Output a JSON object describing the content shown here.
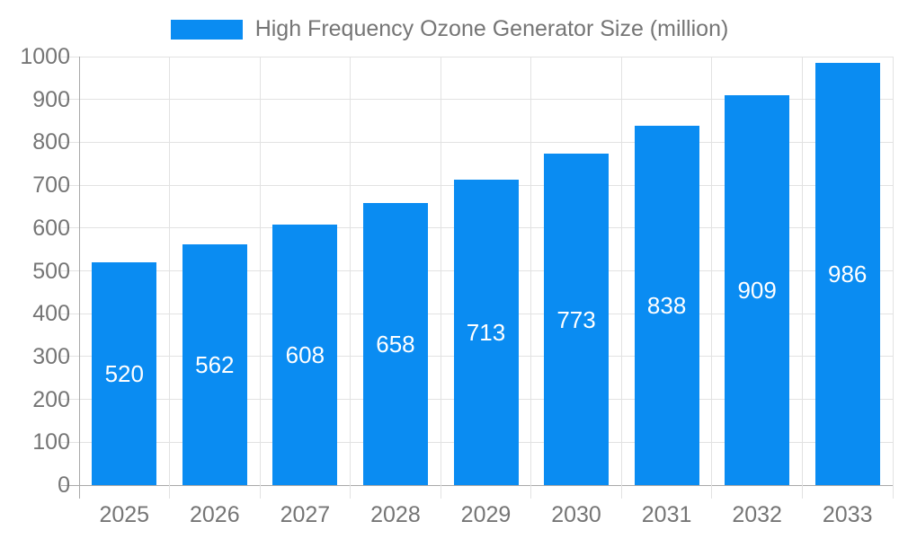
{
  "chart_data": {
    "type": "bar",
    "title": "High Frequency Ozone Generator Size (million)",
    "categories": [
      "2025",
      "2026",
      "2027",
      "2028",
      "2029",
      "2030",
      "2031",
      "2032",
      "2033"
    ],
    "values": [
      520,
      562,
      608,
      658,
      713,
      773,
      838,
      909,
      986
    ],
    "xlabel": "",
    "ylabel": "",
    "ylim": [
      0,
      1000
    ],
    "yticks": [
      0,
      100,
      200,
      300,
      400,
      500,
      600,
      700,
      800,
      900,
      1000
    ],
    "grid": true,
    "legend_position": "top",
    "value_labels": "centered-inside-bars",
    "colors": {
      "bar": "#0a8cf2",
      "grid": "#e2e2e2",
      "axis_line": "#a9a9a9",
      "tick_text": "#757575",
      "value_label_text": "#ffffff",
      "background": "#ffffff"
    }
  }
}
